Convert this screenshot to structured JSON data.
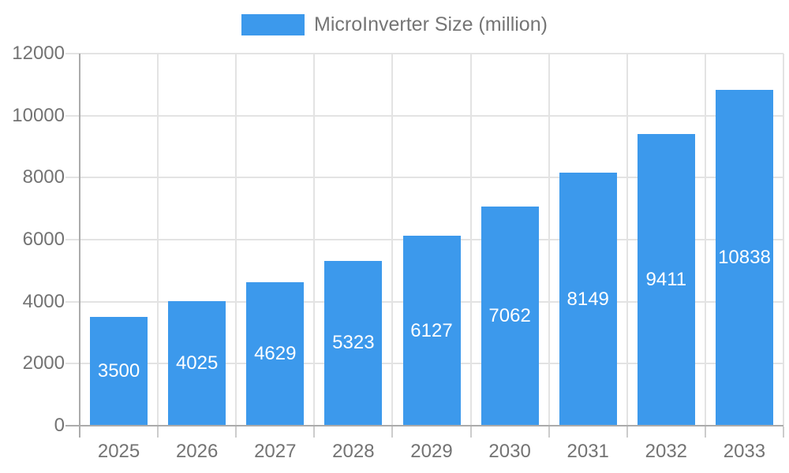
{
  "chart_data": {
    "type": "bar",
    "title": "",
    "legend": {
      "label": "MicroInverter Size (million)",
      "position": "top"
    },
    "categories": [
      "2025",
      "2026",
      "2027",
      "2028",
      "2029",
      "2030",
      "2031",
      "2032",
      "2033"
    ],
    "series": [
      {
        "name": "MicroInverter Size (million)",
        "values": [
          3500,
          4025,
          4629,
          5323,
          6127,
          7062,
          8149,
          9411,
          10838
        ]
      }
    ],
    "value_labels_shown": true,
    "xlabel": "",
    "ylabel": "",
    "ylim": [
      0,
      12000
    ],
    "y_ticks": [
      0,
      2000,
      4000,
      6000,
      8000,
      10000,
      12000
    ],
    "grid": true,
    "legend_position": "top-center",
    "colors": {
      "bar": "#3C99EC",
      "axis_text": "#737373",
      "legend_text": "#757575",
      "grid_line": "#E3E3E3",
      "tick_line": "#CCCCCC",
      "axis_line": "#ABABAB",
      "value_label": "#FFFFFF",
      "background": "#FFFFFF"
    }
  }
}
